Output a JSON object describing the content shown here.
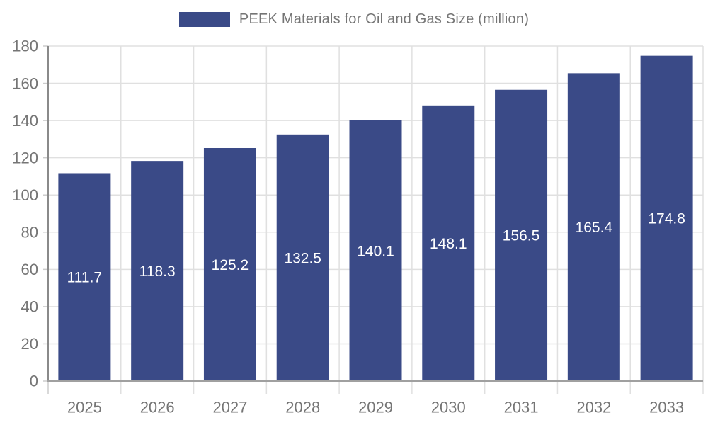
{
  "page": {
    "background": "#ffffff"
  },
  "legend": {
    "title": "PEEK Materials for Oil and Gas Size (million)"
  },
  "colors": {
    "bar": "#3A4A87",
    "bar_label": "#ffffff",
    "axis_text": "#757575",
    "gridline": "#e0e0e0",
    "tick": "#cccccc",
    "spine_left": "#8a8a8a",
    "spine_bottom": "#a0a0a0"
  },
  "chart_data": {
    "type": "bar",
    "title": "PEEK Materials for Oil and Gas Size (million)",
    "categories": [
      "2025",
      "2026",
      "2027",
      "2028",
      "2029",
      "2030",
      "2031",
      "2032",
      "2033"
    ],
    "values": [
      111.7,
      118.3,
      125.2,
      132.5,
      140.1,
      148.1,
      156.5,
      165.4,
      174.8
    ],
    "value_labels": [
      "111.7",
      "118.3",
      "125.2",
      "132.5",
      "140.1",
      "148.1",
      "156.5",
      "165.4",
      "174.8"
    ],
    "xlabel": "",
    "ylabel": "",
    "ylim": [
      0,
      180
    ],
    "ytick_interval": 20,
    "ytick_labels": [
      "0",
      "20",
      "40",
      "60",
      "80",
      "100",
      "120",
      "140",
      "160",
      "180"
    ],
    "grid": true,
    "legend_position": "top"
  }
}
